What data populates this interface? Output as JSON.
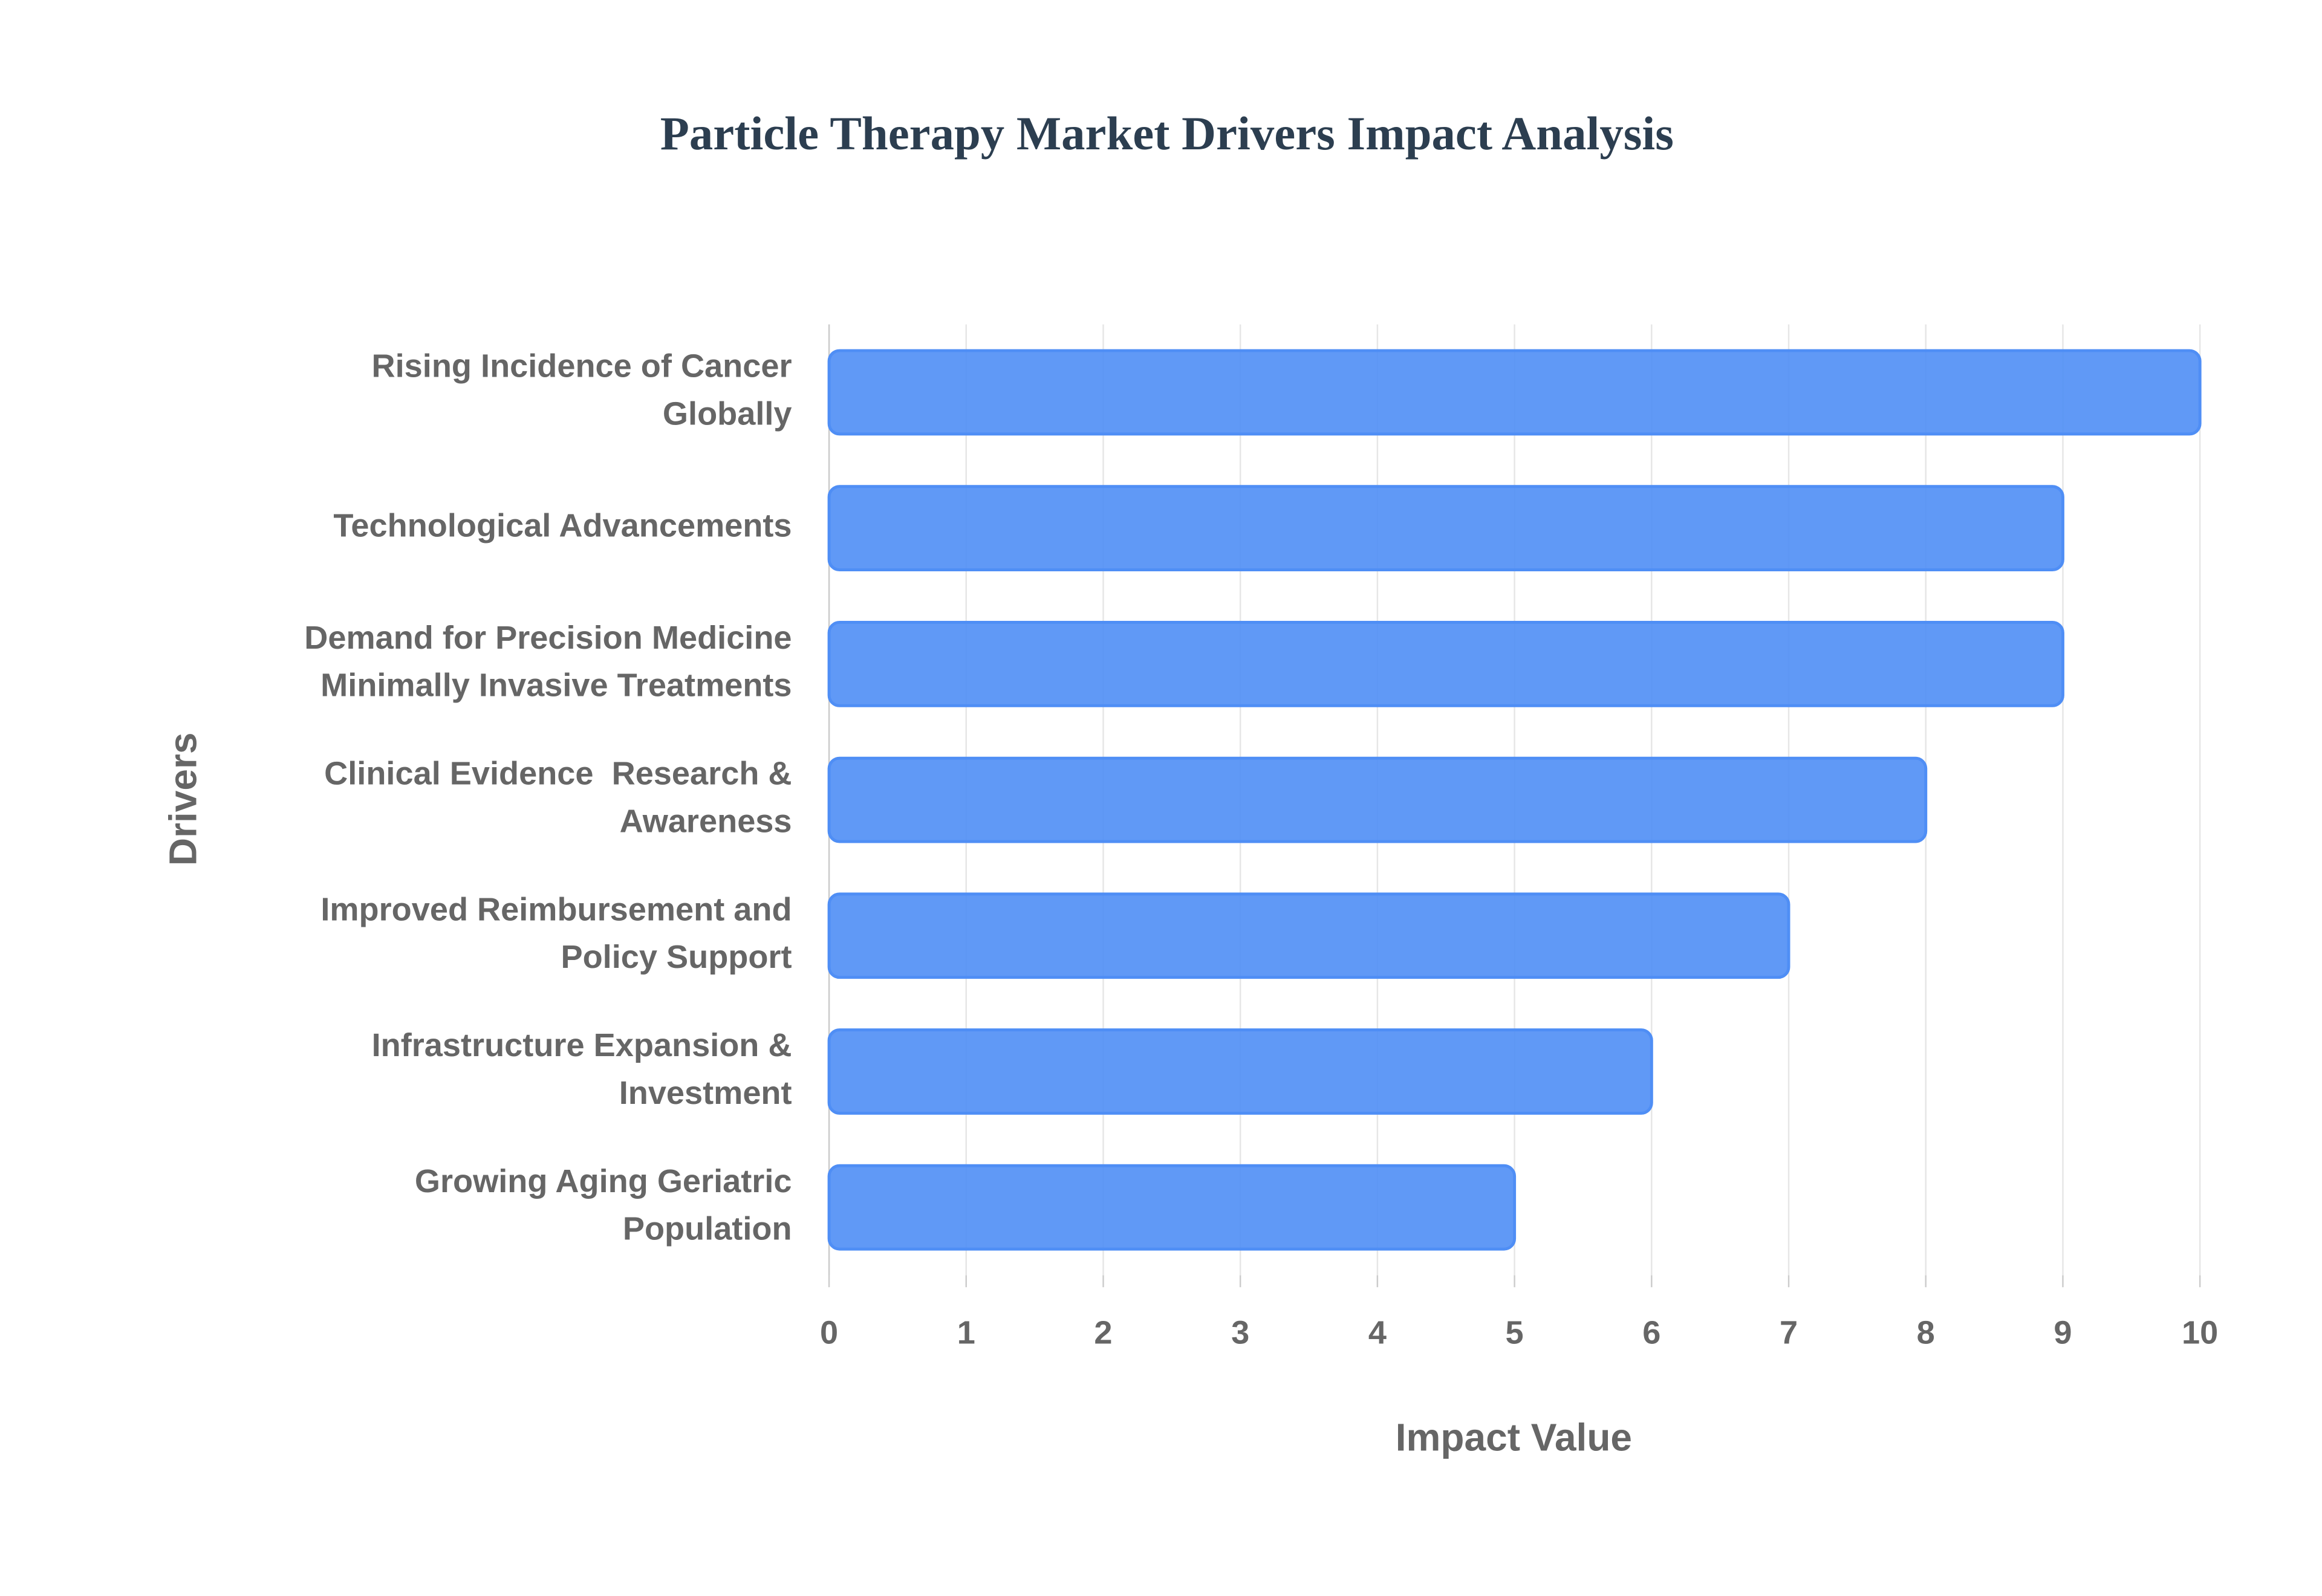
{
  "chart_data": {
    "type": "barh",
    "title": "Particle Therapy Market Drivers Impact Analysis",
    "x_label": "Impact Value",
    "y_label": "Drivers",
    "categories": [
      "Rising Incidence of Cancer Globally",
      "Technological Advancements",
      "Demand for Precision Medicine Minimally Invasive Treatments",
      "Clinical Evidence  Research & Awareness",
      "Improved Reimbursement and Policy Support",
      "Infrastructure Expansion & Investment",
      "Growing Aging Geriatric Population"
    ],
    "values": [
      10,
      9,
      9,
      8,
      7,
      6,
      5
    ],
    "color": "#4f8ef5",
    "xlim": [
      0,
      10
    ],
    "xticks": [
      0,
      1,
      2,
      3,
      4,
      5,
      6,
      7,
      8,
      9,
      10
    ],
    "grid": true
  }
}
